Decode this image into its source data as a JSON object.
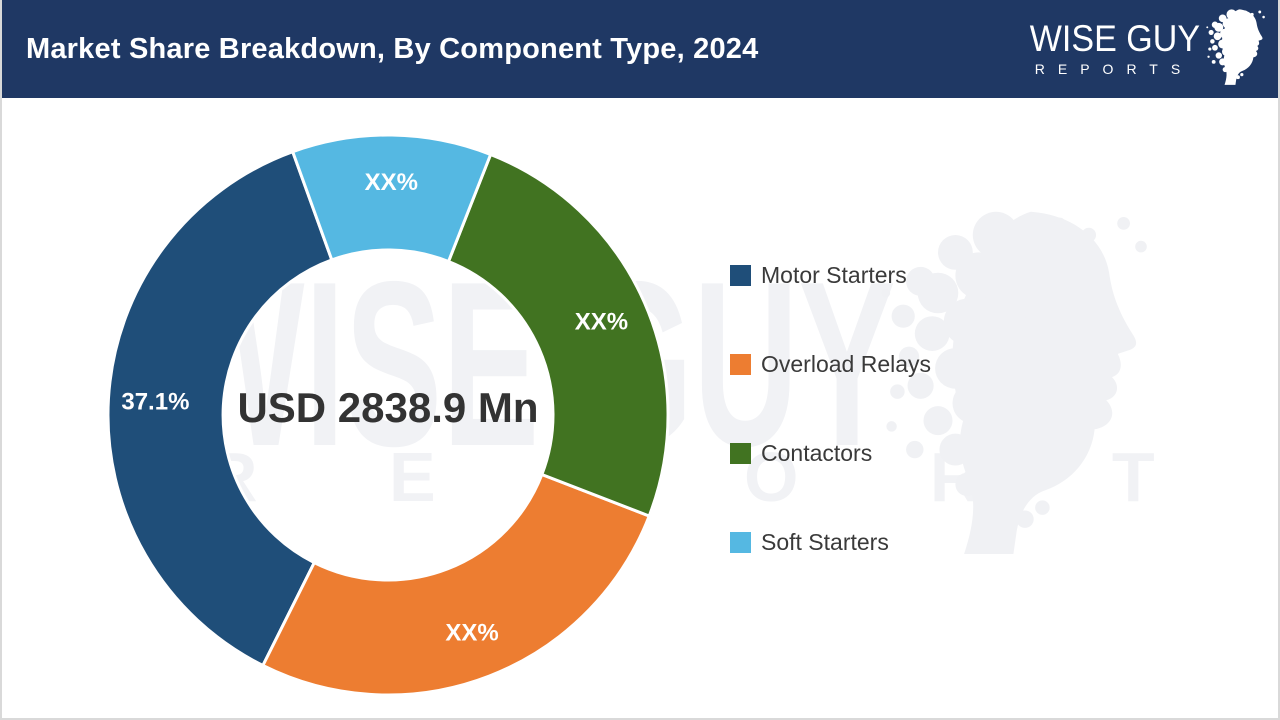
{
  "header": {
    "title": "Market Share Breakdown, By Component Type, 2024",
    "bg_color": "#1f3864",
    "logo": {
      "line1": "WISE GUY",
      "line2": "REPORTS"
    }
  },
  "watermark": {
    "line1": "WISE GUY",
    "line2": "REPORTS"
  },
  "chart_data": {
    "type": "donut",
    "title": "Market Share Breakdown, By Component Type, 2024",
    "center_label": "USD 2838.9 Mn",
    "legend_position": "right",
    "start_angle_deg": 109.9,
    "direction": "counterclockwise",
    "inner_radius_ratio": 0.59,
    "separator_color": "#ffffff",
    "segments": [
      {
        "label": "Motor Starters",
        "display_value": "37.1%",
        "share_pct": 37.1,
        "color": "#1f4e79"
      },
      {
        "label": "Overload Relays",
        "display_value": "XX%",
        "share_pct": 26.5,
        "color": "#ed7d31"
      },
      {
        "label": "Contactors",
        "display_value": "XX%",
        "share_pct": 24.9,
        "color": "#417321"
      },
      {
        "label": "Soft Starters",
        "display_value": "XX%",
        "share_pct": 11.5,
        "color": "#55b8e2"
      }
    ]
  }
}
